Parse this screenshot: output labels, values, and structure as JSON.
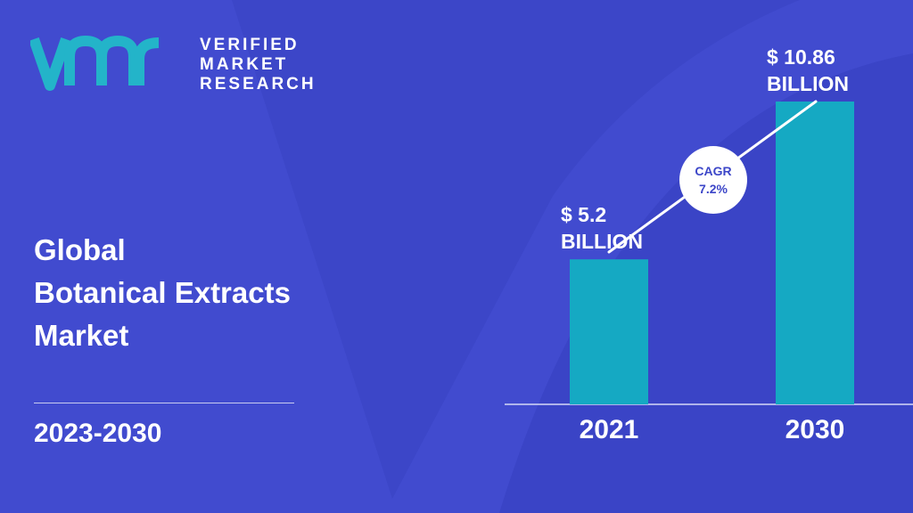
{
  "brand": {
    "name_lines": [
      "VERIFIED",
      "MARKET",
      "RESEARCH"
    ],
    "logo_colors": {
      "mark": "#23b4c9",
      "text": "#ffffff"
    }
  },
  "report": {
    "title_lines": [
      "Global",
      "Botanical Extracts",
      "Market"
    ],
    "period": "2023-2030"
  },
  "colors": {
    "background": "#3c46c8",
    "bar": "#15a9c3",
    "accent_shape": "#4650d6"
  },
  "chart_data": {
    "type": "bar",
    "categories": [
      "2021",
      "2030"
    ],
    "values": [
      5.2,
      10.86
    ],
    "value_labels": [
      [
        "$ 5.2",
        "BILLION"
      ],
      [
        "$ 10.86",
        "BILLION"
      ]
    ],
    "unit": "USD billion",
    "annotation": {
      "line1": "CAGR",
      "line2": "7.2%"
    },
    "grid": false,
    "legend": "none"
  }
}
